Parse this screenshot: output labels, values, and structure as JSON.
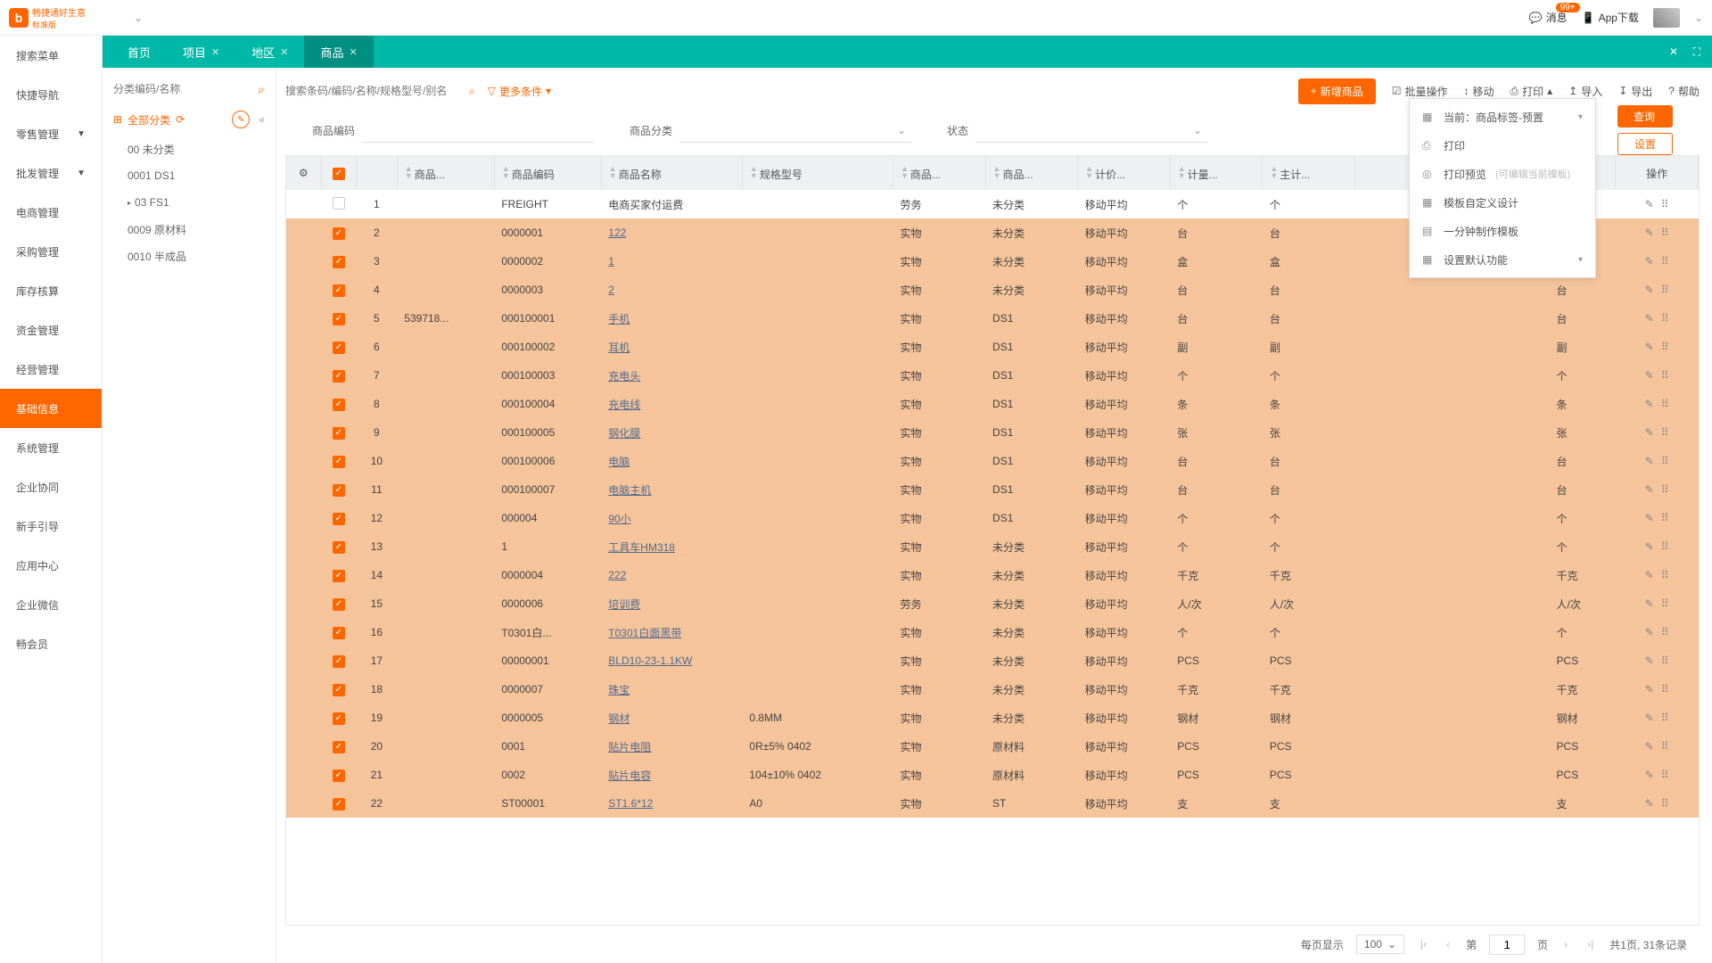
{
  "colors": {
    "primary": "#ff6600",
    "teal": "#00b8a6",
    "teal_dark": "#008f80",
    "row_selected": "#f5c49b"
  },
  "header": {
    "logo_text": "畅捷通好生意",
    "logo_sub": "标准版",
    "message_label": "消息",
    "message_count": "99+",
    "download_label": "App下载"
  },
  "sidebar": {
    "items": [
      {
        "label": "搜索菜单",
        "caret": ""
      },
      {
        "label": "快捷导航",
        "caret": ""
      },
      {
        "label": "零售管理",
        "caret": "▼"
      },
      {
        "label": "批发管理",
        "caret": "▼"
      },
      {
        "label": "电商管理",
        "caret": ""
      },
      {
        "label": "采购管理",
        "caret": ""
      },
      {
        "label": "库存核算",
        "caret": ""
      },
      {
        "label": "资金管理",
        "caret": ""
      },
      {
        "label": "经营管理",
        "caret": ""
      },
      {
        "label": "基础信息",
        "caret": "",
        "active": true
      },
      {
        "label": "系统管理",
        "caret": ""
      },
      {
        "label": "企业协同",
        "caret": ""
      },
      {
        "label": "新手引导",
        "caret": ""
      },
      {
        "label": "应用中心",
        "caret": ""
      },
      {
        "label": "企业微信",
        "caret": ""
      },
      {
        "label": "畅会员",
        "caret": ""
      }
    ]
  },
  "tabs": [
    {
      "label": "首页",
      "closable": false
    },
    {
      "label": "项目",
      "closable": true
    },
    {
      "label": "地区",
      "closable": true
    },
    {
      "label": "商品",
      "closable": true,
      "active": true
    }
  ],
  "cat": {
    "search_placeholder": "分类编码/名称",
    "all_label": "全部分类",
    "items": [
      {
        "label": "00 未分类"
      },
      {
        "label": "0001 DS1"
      },
      {
        "label": "03 FS1",
        "tri": true
      },
      {
        "label": "0009 原材料"
      },
      {
        "label": "0010 半成品"
      }
    ]
  },
  "toolbar": {
    "search_placeholder": "搜索条码/编码/名称/规格型号/别名",
    "more_filter": "更多条件",
    "add_btn": "新增商品",
    "batch": "批量操作",
    "move": "移动",
    "print": "打印",
    "import": "导入",
    "export": "导出",
    "help": "帮助"
  },
  "filter": {
    "code_label": "商品编码",
    "cat_label": "商品分类",
    "status_label": "状态",
    "query_btn": "查询",
    "set_btn": "设置"
  },
  "print_menu": {
    "current_prefix": "当前：",
    "current_value": "商品标签-预置",
    "items": [
      {
        "icon": "⎙",
        "label": "打印"
      },
      {
        "icon": "◎",
        "label": "打印预览",
        "hint": "(可编辑当前模板)"
      },
      {
        "icon": "▦",
        "label": "模板自定义设计"
      },
      {
        "icon": "▤",
        "label": "一分钟制作模板"
      },
      {
        "icon": "▦",
        "label": "设置默认功能",
        "arrow": true
      }
    ]
  },
  "table": {
    "columns": [
      "商品...",
      "商品编码",
      "商品名称",
      "规格型号",
      "商品...",
      "商品...",
      "计价...",
      "计量...",
      "主计...",
      "销售...",
      "操作"
    ],
    "rows": [
      {
        "n": 1,
        "chk": false,
        "barcode": "",
        "code": "FREIGHT",
        "name": "电商买家付运费",
        "link": false,
        "spec": "",
        "type": "劳务",
        "cat": "未分类",
        "price": "移动平均",
        "unit": "个",
        "main": "个",
        "sale": ""
      },
      {
        "n": 2,
        "chk": true,
        "barcode": "",
        "code": "0000001",
        "name": "122",
        "link": true,
        "spec": "",
        "type": "实物",
        "cat": "未分类",
        "price": "移动平均",
        "unit": "台",
        "main": "台",
        "sale": "台"
      },
      {
        "n": 3,
        "chk": true,
        "barcode": "",
        "code": "0000002",
        "name": "1",
        "link": true,
        "spec": "",
        "type": "实物",
        "cat": "未分类",
        "price": "移动平均",
        "unit": "盒",
        "main": "盒",
        "sale": "盒"
      },
      {
        "n": 4,
        "chk": true,
        "barcode": "",
        "code": "0000003",
        "name": "2",
        "link": true,
        "spec": "",
        "type": "实物",
        "cat": "未分类",
        "price": "移动平均",
        "unit": "台",
        "main": "台",
        "sale": "台"
      },
      {
        "n": 5,
        "chk": true,
        "barcode": "539718...",
        "code": "000100001",
        "name": "手机",
        "link": true,
        "spec": "",
        "type": "实物",
        "cat": "DS1",
        "price": "移动平均",
        "unit": "台",
        "main": "台",
        "sale": "台"
      },
      {
        "n": 6,
        "chk": true,
        "barcode": "",
        "code": "000100002",
        "name": "耳机",
        "link": true,
        "spec": "",
        "type": "实物",
        "cat": "DS1",
        "price": "移动平均",
        "unit": "副",
        "main": "副",
        "sale": "副"
      },
      {
        "n": 7,
        "chk": true,
        "barcode": "",
        "code": "000100003",
        "name": "充电头",
        "link": true,
        "spec": "",
        "type": "实物",
        "cat": "DS1",
        "price": "移动平均",
        "unit": "个",
        "main": "个",
        "sale": "个"
      },
      {
        "n": 8,
        "chk": true,
        "barcode": "",
        "code": "000100004",
        "name": "充电线",
        "link": true,
        "spec": "",
        "type": "实物",
        "cat": "DS1",
        "price": "移动平均",
        "unit": "条",
        "main": "条",
        "sale": "条"
      },
      {
        "n": 9,
        "chk": true,
        "barcode": "",
        "code": "000100005",
        "name": "钢化膜",
        "link": true,
        "spec": "",
        "type": "实物",
        "cat": "DS1",
        "price": "移动平均",
        "unit": "张",
        "main": "张",
        "sale": "张"
      },
      {
        "n": 10,
        "chk": true,
        "barcode": "",
        "code": "000100006",
        "name": "电脑",
        "link": true,
        "spec": "",
        "type": "实物",
        "cat": "DS1",
        "price": "移动平均",
        "unit": "台",
        "main": "台",
        "sale": "台"
      },
      {
        "n": 11,
        "chk": true,
        "barcode": "",
        "code": "000100007",
        "name": "电脑主机",
        "link": true,
        "spec": "",
        "type": "实物",
        "cat": "DS1",
        "price": "移动平均",
        "unit": "台",
        "main": "台",
        "sale": "台"
      },
      {
        "n": 12,
        "chk": true,
        "barcode": "",
        "code": "000004",
        "name": "90小",
        "link": true,
        "spec": "",
        "type": "实物",
        "cat": "DS1",
        "price": "移动平均",
        "unit": "个",
        "main": "个",
        "sale": "个"
      },
      {
        "n": 13,
        "chk": true,
        "barcode": "",
        "code": "1",
        "name": "工具车HM318",
        "link": true,
        "spec": "",
        "type": "实物",
        "cat": "未分类",
        "price": "移动平均",
        "unit": "个",
        "main": "个",
        "sale": "个"
      },
      {
        "n": 14,
        "chk": true,
        "barcode": "",
        "code": "0000004",
        "name": "222",
        "link": true,
        "spec": "",
        "type": "实物",
        "cat": "未分类",
        "price": "移动平均",
        "unit": "千克",
        "main": "千克",
        "sale": "千克"
      },
      {
        "n": 15,
        "chk": true,
        "barcode": "",
        "code": "0000006",
        "name": "培训费",
        "link": true,
        "spec": "",
        "type": "劳务",
        "cat": "未分类",
        "price": "移动平均",
        "unit": "人/次",
        "main": "人/次",
        "sale": "人/次"
      },
      {
        "n": 16,
        "chk": true,
        "barcode": "",
        "code": "T0301白...",
        "name": "T0301白面黑带",
        "link": true,
        "spec": "",
        "type": "实物",
        "cat": "未分类",
        "price": "移动平均",
        "unit": "个",
        "main": "个",
        "sale": "个"
      },
      {
        "n": 17,
        "chk": true,
        "barcode": "",
        "code": "00000001",
        "name": "BLD10-23-1.1KW",
        "link": true,
        "spec": "",
        "type": "实物",
        "cat": "未分类",
        "price": "移动平均",
        "unit": "PCS",
        "main": "PCS",
        "sale": "PCS"
      },
      {
        "n": 18,
        "chk": true,
        "barcode": "",
        "code": "0000007",
        "name": "珠宝",
        "link": true,
        "spec": "",
        "type": "实物",
        "cat": "未分类",
        "price": "移动平均",
        "unit": "千克",
        "main": "千克",
        "sale": "千克"
      },
      {
        "n": 19,
        "chk": true,
        "barcode": "",
        "code": "0000005",
        "name": "钢材",
        "link": true,
        "spec": "0.8MM",
        "type": "实物",
        "cat": "未分类",
        "price": "移动平均",
        "unit": "钢材",
        "main": "钢材",
        "sale": "钢材"
      },
      {
        "n": 20,
        "chk": true,
        "barcode": "",
        "code": "0001",
        "name": "贴片电阻",
        "link": true,
        "spec": "0R±5% 0402",
        "type": "实物",
        "cat": "原材料",
        "price": "移动平均",
        "unit": "PCS",
        "main": "PCS",
        "sale": "PCS"
      },
      {
        "n": 21,
        "chk": true,
        "barcode": "",
        "code": "0002",
        "name": "贴片电容",
        "link": true,
        "spec": "104±10% 0402",
        "type": "实物",
        "cat": "原材料",
        "price": "移动平均",
        "unit": "PCS",
        "main": "PCS",
        "sale": "PCS"
      },
      {
        "n": 22,
        "chk": true,
        "barcode": "",
        "code": "ST00001",
        "name": "ST1.6*12",
        "link": true,
        "spec": "A0",
        "type": "实物",
        "cat": "ST",
        "price": "移动平均",
        "unit": "支",
        "main": "支",
        "sale": "支"
      }
    ]
  },
  "pagination": {
    "per_page_label": "每页显示",
    "per_page_value": "100",
    "page_prefix": "第",
    "page_value": "1",
    "page_suffix": "页",
    "total": "共1页, 31条记录"
  }
}
